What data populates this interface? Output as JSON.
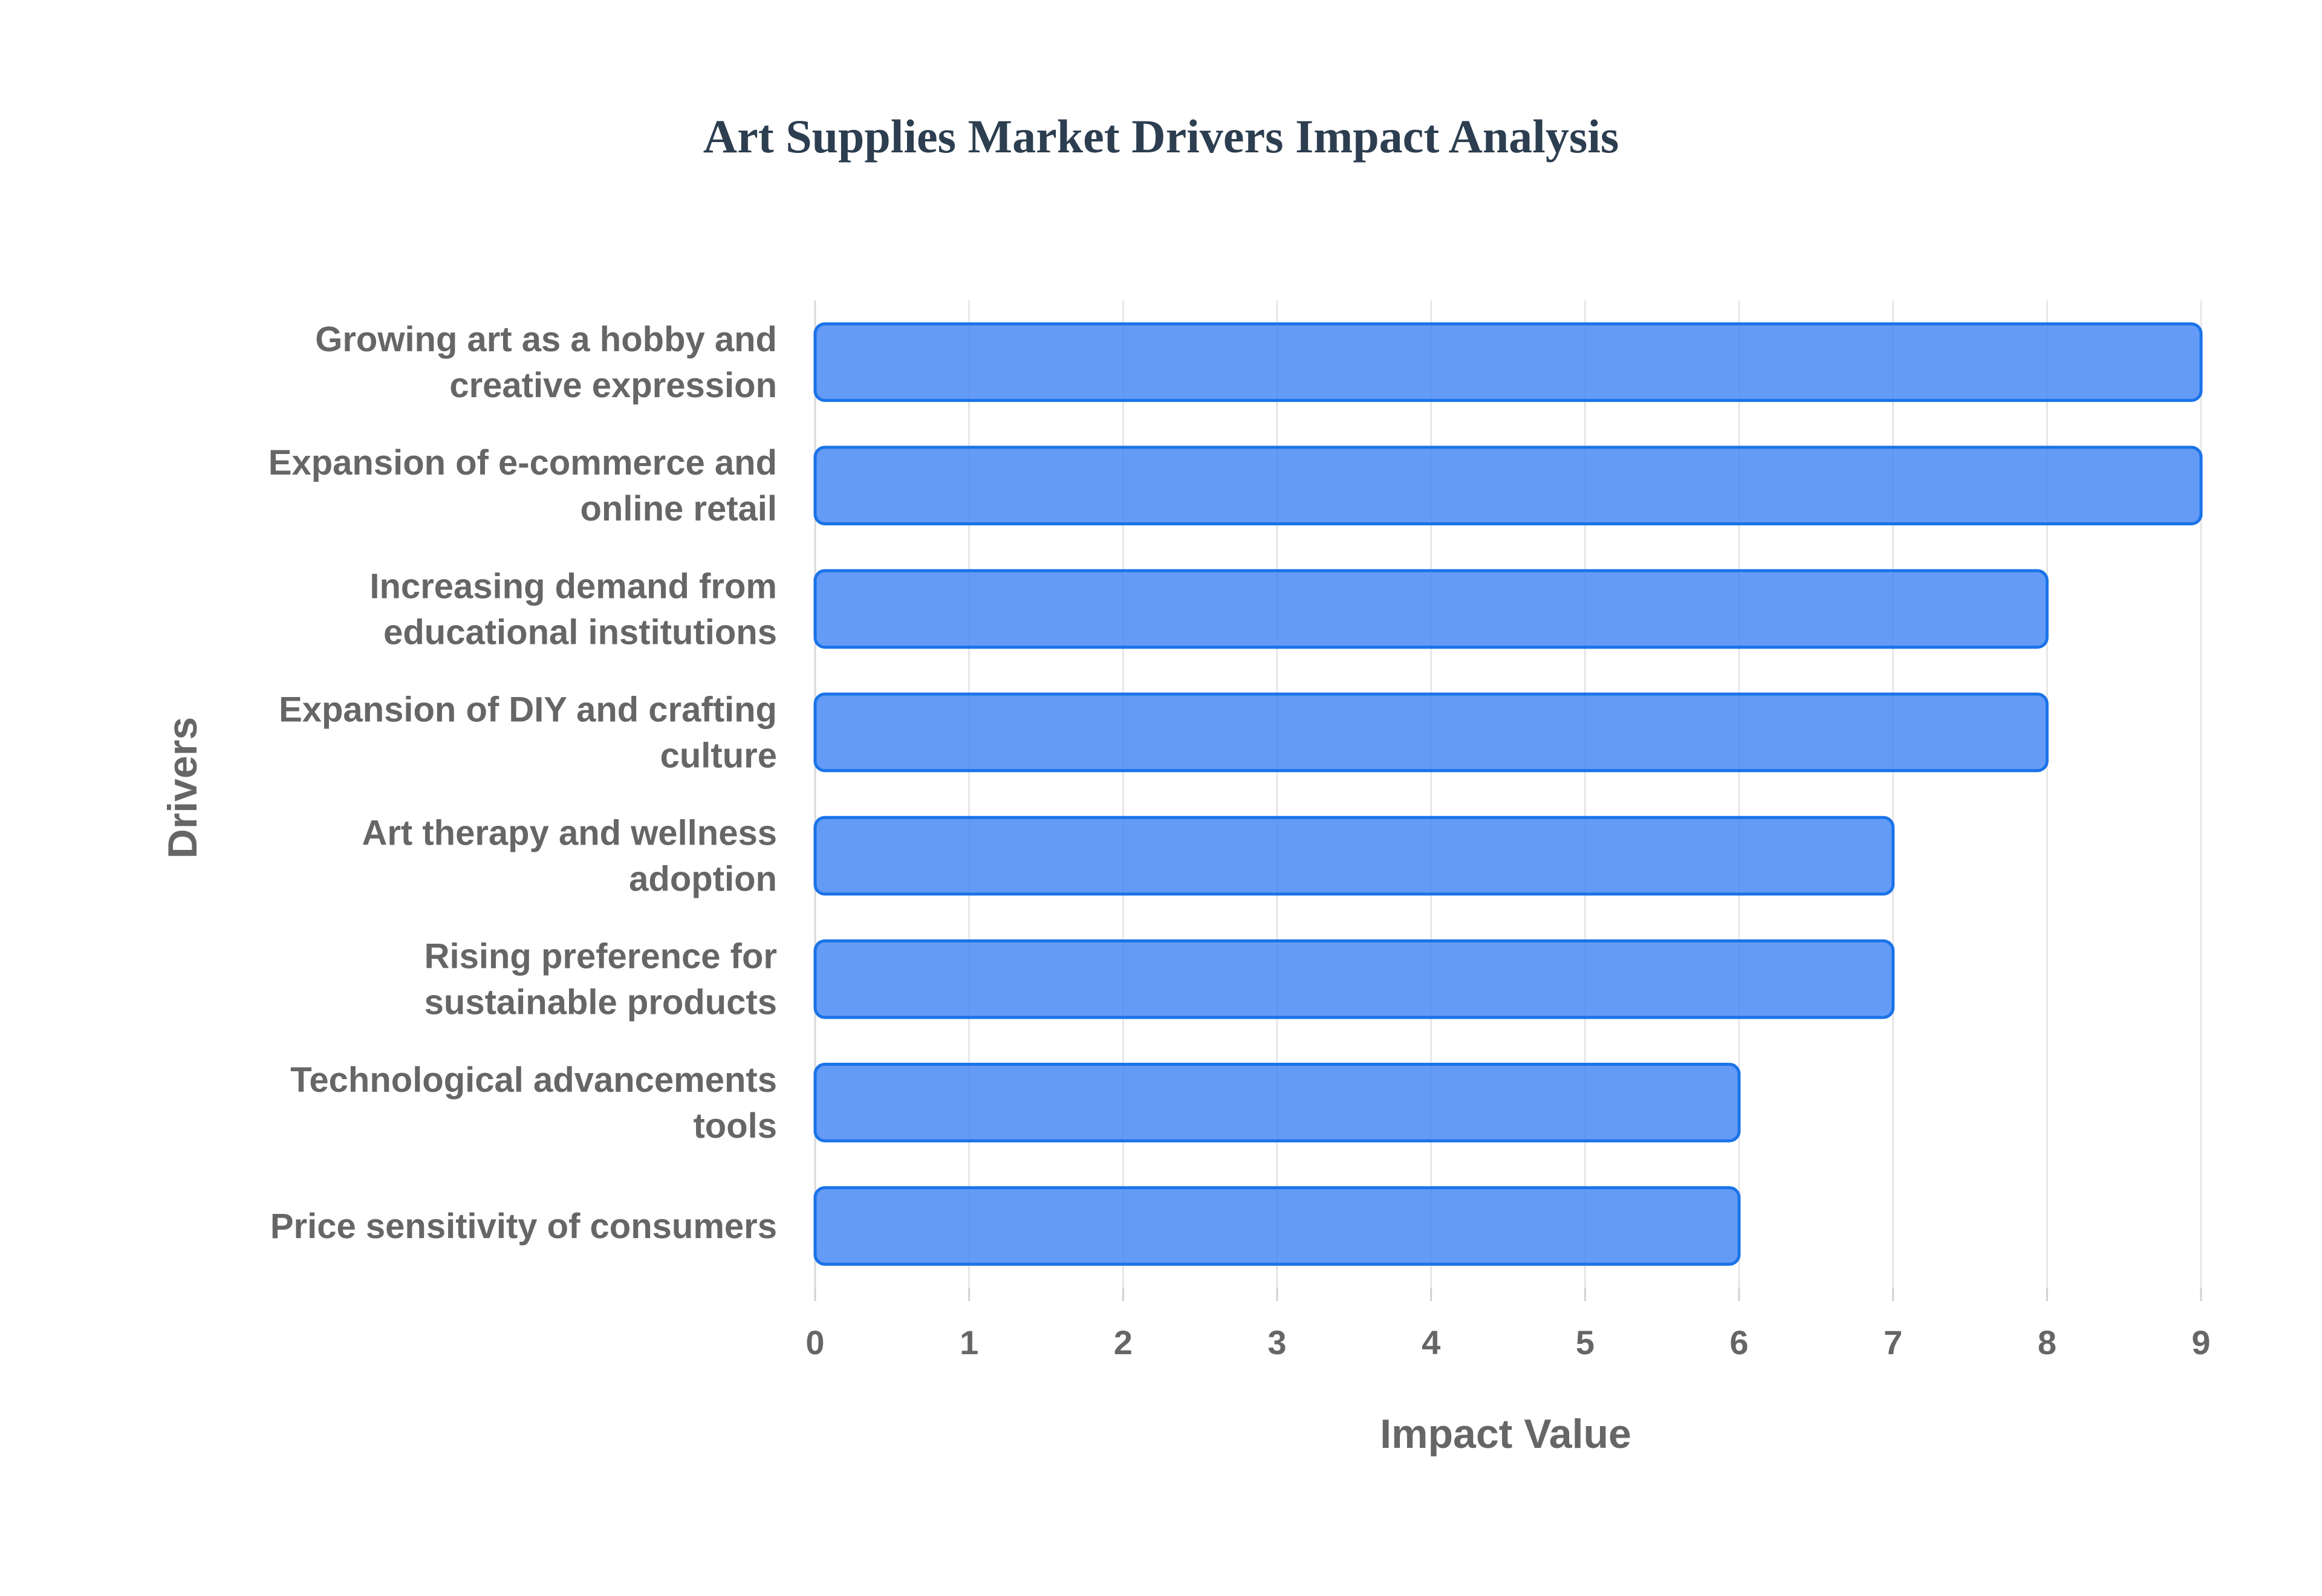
{
  "chart_data": {
    "type": "bar",
    "orientation": "horizontal",
    "title": "Art Supplies Market Drivers Impact Analysis",
    "xlabel": "Impact Value",
    "ylabel": "Drivers",
    "categories": [
      [
        "Growing art as a hobby and",
        "creative expression"
      ],
      [
        "Expansion of e-commerce and",
        "online retail"
      ],
      [
        "Increasing demand from",
        "educational institutions"
      ],
      [
        "Expansion of DIY and crafting",
        "culture"
      ],
      [
        "Art therapy and wellness",
        "adoption"
      ],
      [
        "Rising preference for",
        "sustainable products"
      ],
      [
        "Technological advancements",
        "tools"
      ],
      [
        "Price sensitivity of consumers"
      ]
    ],
    "values": [
      9,
      9,
      8,
      8,
      7,
      7,
      6,
      6
    ],
    "xlim": [
      0,
      9
    ],
    "ticks": [
      "0",
      "1",
      "2",
      "3",
      "4",
      "5",
      "6",
      "7",
      "8",
      "9"
    ],
    "grid": true,
    "legend": "none",
    "bar_color": "#4285f4",
    "bar_border_color": "#1a73e8"
  }
}
